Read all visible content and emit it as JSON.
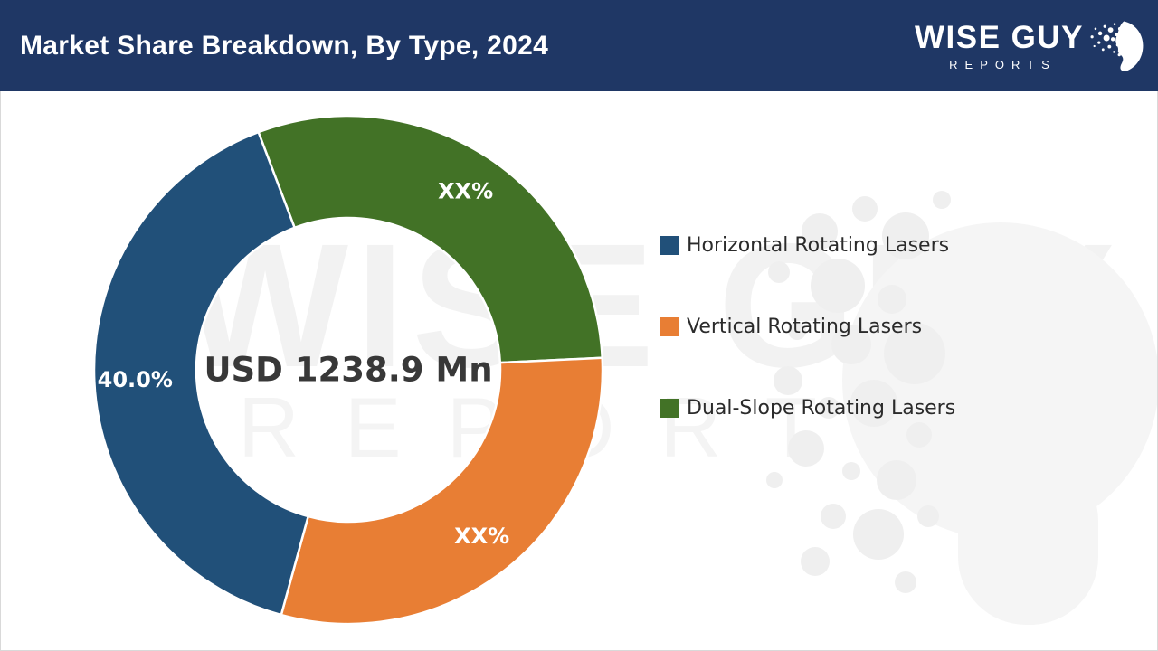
{
  "header": {
    "title": "Market Share Breakdown, By Type, 2024",
    "logo": {
      "line1": "WISE GUY",
      "line2": "REPORTS"
    }
  },
  "watermark": {
    "line1": "WISE GUY",
    "line2": "REPORTS"
  },
  "chart_data": {
    "type": "pie",
    "subtype": "donut",
    "title": "Market Share Breakdown, By Type, 2024",
    "center_label": "USD 1238.9 Mn",
    "start_angle_deg": -20.7,
    "direction": "clockwise",
    "legend_position": "right",
    "segments": [
      {
        "label": "Dual-Slope Rotating Lasers",
        "value": 30,
        "display_label": "XX%",
        "color": "#427226",
        "label_color": "#ffffff"
      },
      {
        "label": "Vertical Rotating Lasers",
        "value": 30,
        "display_label": "XX%",
        "color": "#e87e34",
        "label_color": "#ffffff"
      },
      {
        "label": "Horizontal Rotating Lasers",
        "value": 40,
        "display_label": "40.0%",
        "color": "#215079",
        "label_color": "#ffffff"
      }
    ]
  },
  "legend": {
    "items": [
      {
        "label": "Horizontal Rotating Lasers",
        "color": "#215079"
      },
      {
        "label": "Vertical Rotating Lasers",
        "color": "#e87e34"
      },
      {
        "label": "Dual-Slope Rotating Lasers",
        "color": "#427226"
      }
    ]
  },
  "colors": {
    "header_bg": "#1f3765",
    "page_bg": "#ffffff",
    "center_text": "#383838",
    "watermark": "#f2f2f2",
    "border": "#d9d9d9"
  }
}
